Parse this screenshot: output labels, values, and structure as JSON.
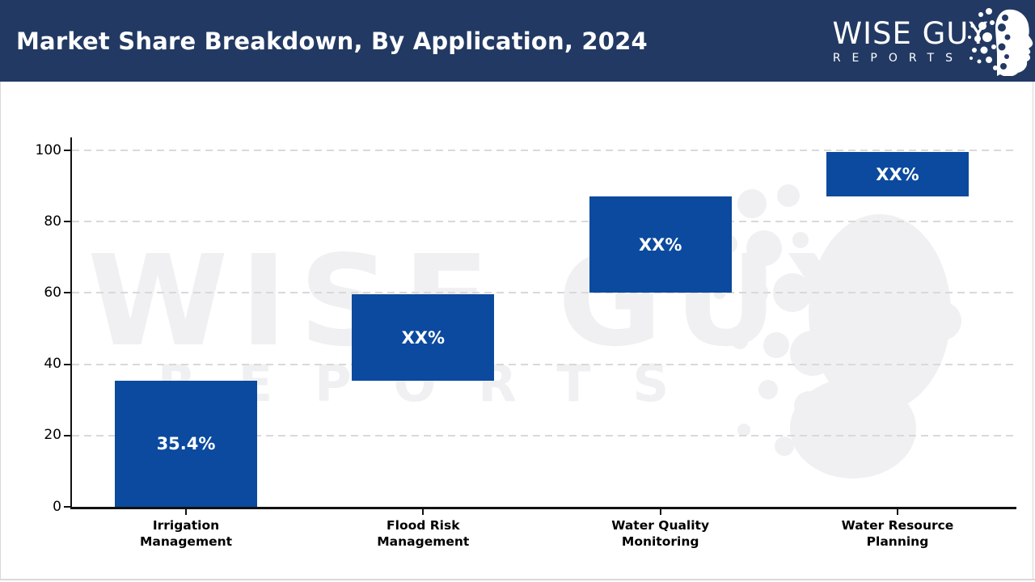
{
  "header": {
    "title": "Market Share Breakdown, By Application, 2024",
    "logo_line1": "WISE GUY",
    "logo_line2": "REPORTS"
  },
  "watermark": {
    "line1": "WISE GUY",
    "line2": "REPORTS"
  },
  "colors": {
    "header_bg": "#223963",
    "bar": "#0B4A9E",
    "grid": "#D9D9D9",
    "axis": "#111111",
    "bar_label": "#FFFFFF",
    "watermark": "#F0F0F3",
    "edge": "#D8D8D8"
  },
  "chart_data": {
    "type": "bar",
    "subtype": "waterfall",
    "title": "Market Share Breakdown, By Application, 2024",
    "xlabel": "",
    "ylabel": "",
    "ylim": [
      0,
      103.6
    ],
    "yticks": [
      0,
      20,
      40,
      60,
      80,
      100
    ],
    "grid": "horizontal-dashed",
    "legend": "none",
    "categories": [
      "Irrigation Management",
      "Flood Risk Management",
      "Water Quality Monitoring",
      "Water Resource Planning"
    ],
    "category_lines": [
      [
        "Irrigation",
        "Management"
      ],
      [
        "Flood Risk",
        "Management"
      ],
      [
        "Water Quality",
        "Monitoring"
      ],
      [
        "Water Resource",
        "Planning"
      ]
    ],
    "bars": [
      {
        "category": "Irrigation Management",
        "label": "35.4%",
        "start": 0,
        "end": 35.4
      },
      {
        "category": "Flood Risk Management",
        "label": "XX%",
        "start": 35.3,
        "end": 59.6
      },
      {
        "category": "Water Quality Monitoring",
        "label": "XX%",
        "start": 60.0,
        "end": 87.0
      },
      {
        "category": "Water Resource Planning",
        "label": "XX%",
        "start": 87.1,
        "end": 99.5
      }
    ]
  }
}
